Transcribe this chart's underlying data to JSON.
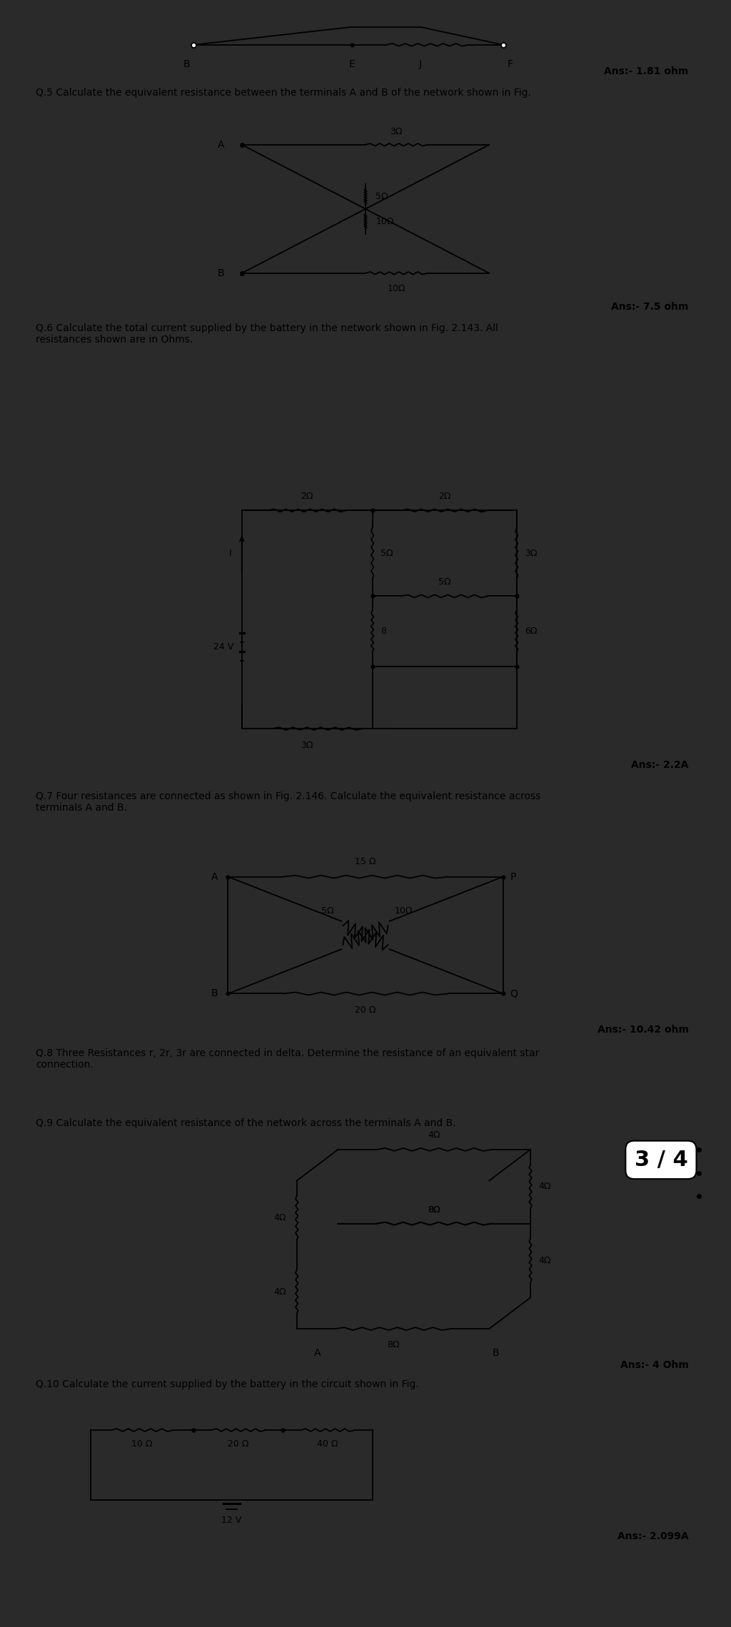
{
  "outer_bg": "#2a2a2a",
  "page_bg": "#ffffff",
  "text_color": "#000000",
  "lw": 1.3,
  "page1": {
    "ans_top": "Ans:- 1.81 ohm",
    "q5_text": "Q.5 Calculate the equivalent resistance between the terminals A and B of the network shown in Fig.",
    "ans_q5": "Ans:- 7.5 ohm",
    "q6_text": "Q.6 Calculate the total current supplied by the battery in the network shown in Fig. 2.143. All\nresistances shown are in Ohms."
  },
  "page2": {
    "ans_q6": "Ans:- 2.2A",
    "q7_text": "Q.7 Four resistances are connected as shown in Fig. 2.146. Calculate the equivalent resistance across\nterminals A and B.",
    "ans_q7": "Ans:- 10.42 ohm",
    "q8_text": "Q.8 Three Resistances r, 2r, 3r are connected in delta. Determine the resistance of an equivalent star\nconnection.",
    "q9_text": "Q.9 Calculate the equivalent resistance of the network across the terminals A and B.",
    "ans_q9": "Ans:- 4 Ohm",
    "q10_text": "Q.10 Calculate the current supplied by the battery in the circuit shown in Fig.",
    "ans_q10": "Ans:- 2.099A",
    "page_label": "3 / 4"
  }
}
